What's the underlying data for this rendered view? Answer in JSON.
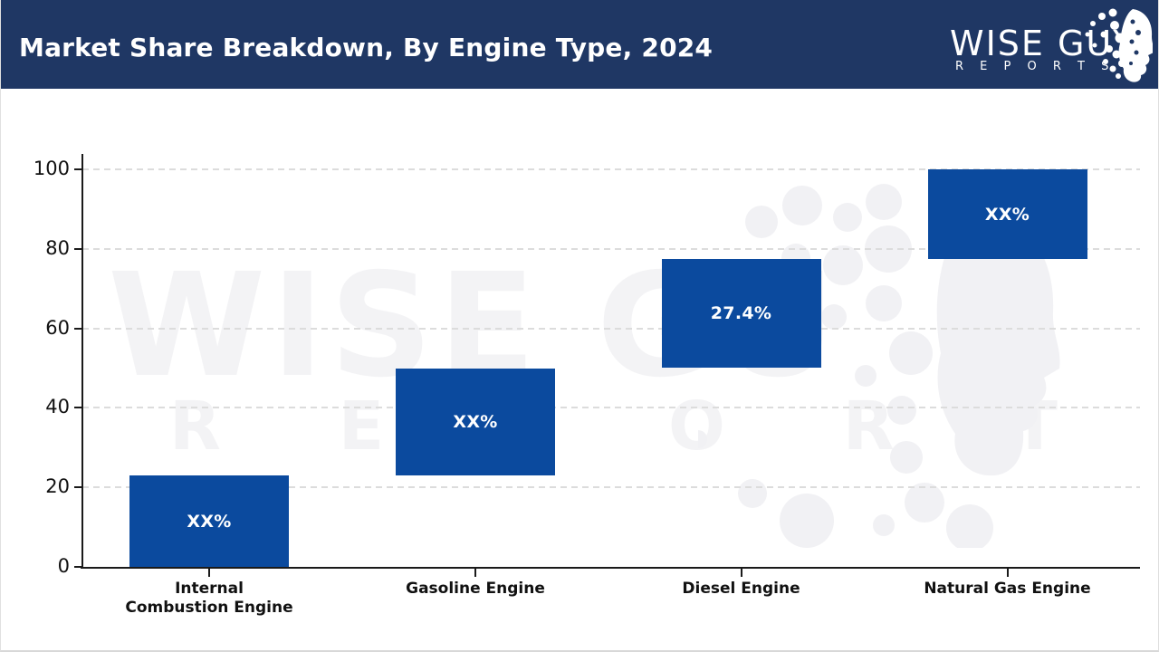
{
  "header": {
    "title": "Market Share Breakdown, By Engine Type, 2024",
    "logo": {
      "line1": "WISE GUY",
      "line2": "R E P O R T S"
    }
  },
  "watermark": {
    "line1": "WISE GU",
    "line2": "R E P O R T S"
  },
  "chart_data": {
    "type": "bar",
    "subtype": "floating-waterfall",
    "title": "Market Share Breakdown, By Engine Type, 2024",
    "categories": [
      "Internal Combustion Engine",
      "Gasoline Engine",
      "Diesel Engine",
      "Natural Gas Engine"
    ],
    "category_lines": [
      [
        "Internal",
        "Combustion Engine"
      ],
      [
        "Gasoline Engine"
      ],
      [
        "Diesel Engine"
      ],
      [
        "Natural Gas Engine"
      ]
    ],
    "bars": [
      {
        "category": "Internal Combustion Engine",
        "start": 0,
        "end": 23,
        "label": "XX%"
      },
      {
        "category": "Gasoline Engine",
        "start": 23,
        "end": 50,
        "label": "XX%"
      },
      {
        "category": "Diesel Engine",
        "start": 50,
        "end": 77.4,
        "label": "27.4%"
      },
      {
        "category": "Natural Gas Engine",
        "start": 77.4,
        "end": 100,
        "label": "XX%"
      }
    ],
    "yticks": [
      0,
      20,
      40,
      60,
      80,
      100
    ],
    "ylim": [
      0,
      104
    ],
    "xlabel": "",
    "ylabel": "",
    "grid": "horizontal-dashed",
    "legend": "none",
    "colors": {
      "bar": "#0b4a9e",
      "bar_label": "#ffffff",
      "grid": "#dcdcdc",
      "axis": "#1a1a1a",
      "header_bg": "#1f3764",
      "watermark": "#f3f3f5"
    }
  }
}
